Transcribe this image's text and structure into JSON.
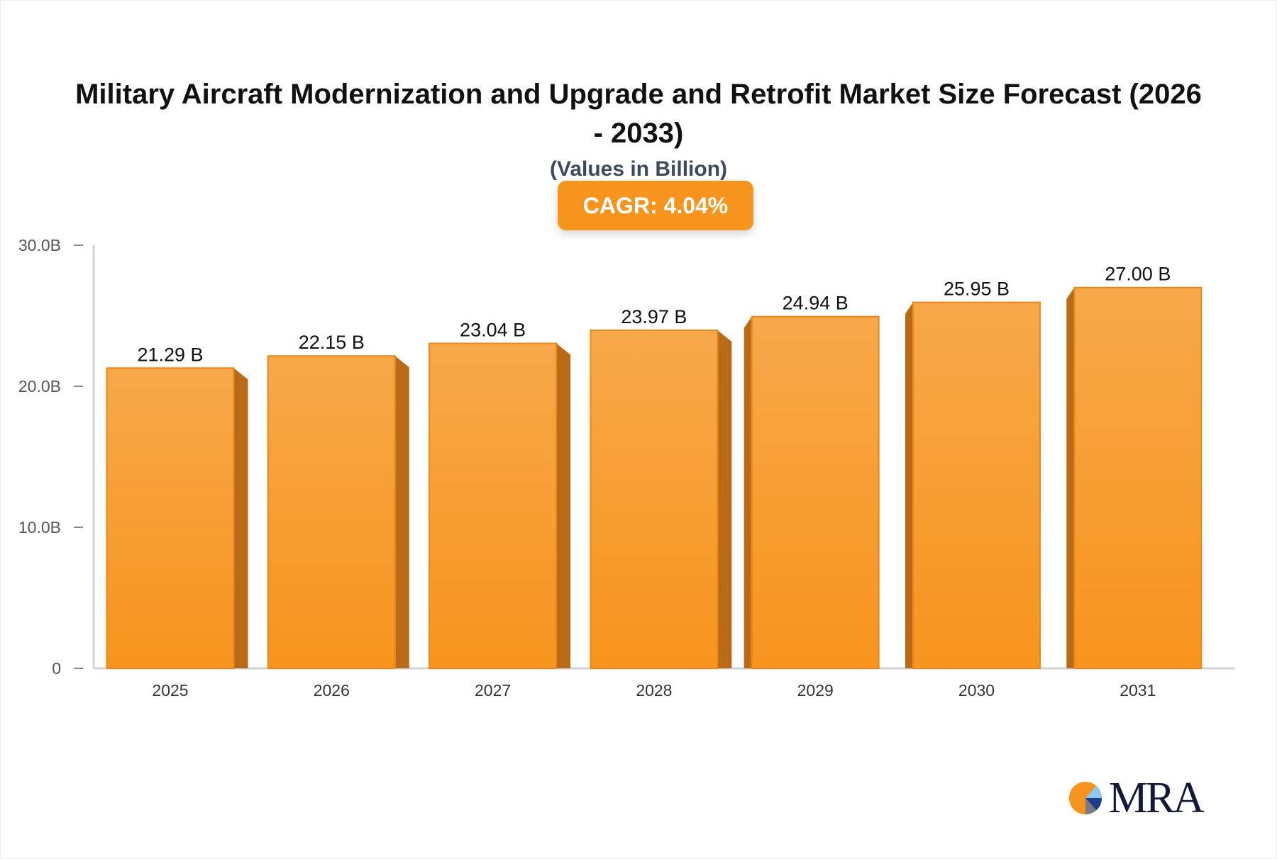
{
  "chart_data": {
    "type": "bar",
    "title": "Military Aircraft Modernization and Upgrade and Retrofit Market Size Forecast (2026 - 2033)",
    "subtitle": "(Values in Billion)",
    "badge": "CAGR: 4.04%",
    "categories": [
      "2025",
      "2026",
      "2027",
      "2028",
      "2029",
      "2030",
      "2031"
    ],
    "values": [
      21.29,
      22.15,
      23.04,
      23.97,
      24.94,
      25.95,
      27.0
    ],
    "data_labels": [
      "21.29 B",
      "22.15 B",
      "23.04 B",
      "23.97 B",
      "24.94 B",
      "25.95 B",
      "27.00 B"
    ],
    "yticks": [
      0,
      10,
      20,
      30
    ],
    "ytick_labels": [
      "0",
      "10.0B",
      "20.0B",
      "30.0B"
    ],
    "ylim": [
      0,
      30
    ],
    "grid": false,
    "colors": {
      "bar": "#f7941d",
      "bar_top": "#f7a84a",
      "bar_side": "#b86a17",
      "badge": "#f7941d"
    }
  },
  "logo": {
    "text": "MRA"
  }
}
